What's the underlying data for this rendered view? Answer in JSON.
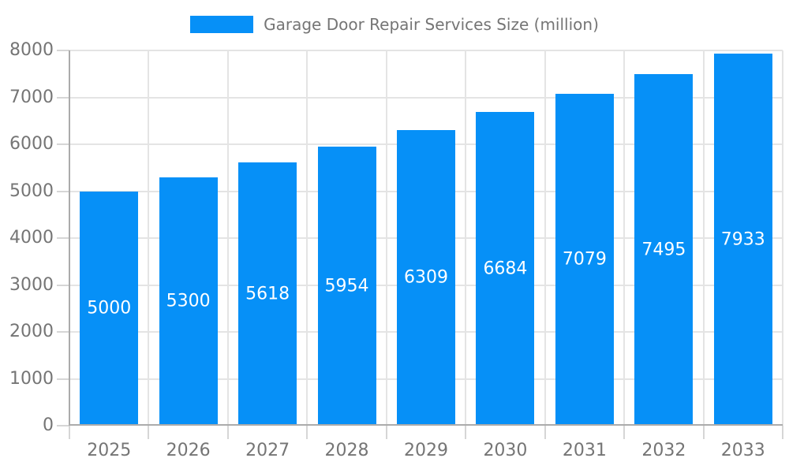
{
  "legend": {
    "label": "Garage Door Repair Services Size (million)"
  },
  "chart_data": {
    "type": "bar",
    "title": "Garage Door Repair Services Size (million)",
    "categories": [
      "2025",
      "2026",
      "2027",
      "2028",
      "2029",
      "2030",
      "2031",
      "2032",
      "2033"
    ],
    "values": [
      5000,
      5300,
      5618,
      5954,
      6309,
      6684,
      7079,
      7495,
      7933
    ],
    "xlabel": "",
    "ylabel": "",
    "ylim": [
      0,
      8000
    ],
    "ytick_step": 1000,
    "ytick_labels": [
      "0",
      "1000",
      "2000",
      "3000",
      "4000",
      "5000",
      "6000",
      "7000",
      "8000"
    ],
    "grid": true,
    "legend_position": "top-center",
    "value_labels": "inside-center",
    "colors": {
      "bar": "#0690f7",
      "value_label": "#ffffff",
      "axis_text": "#757575",
      "axis_line": "#ababab",
      "gridline": "#e4e4e4",
      "tick": "#d6d6d6",
      "background": "#ffffff"
    }
  }
}
